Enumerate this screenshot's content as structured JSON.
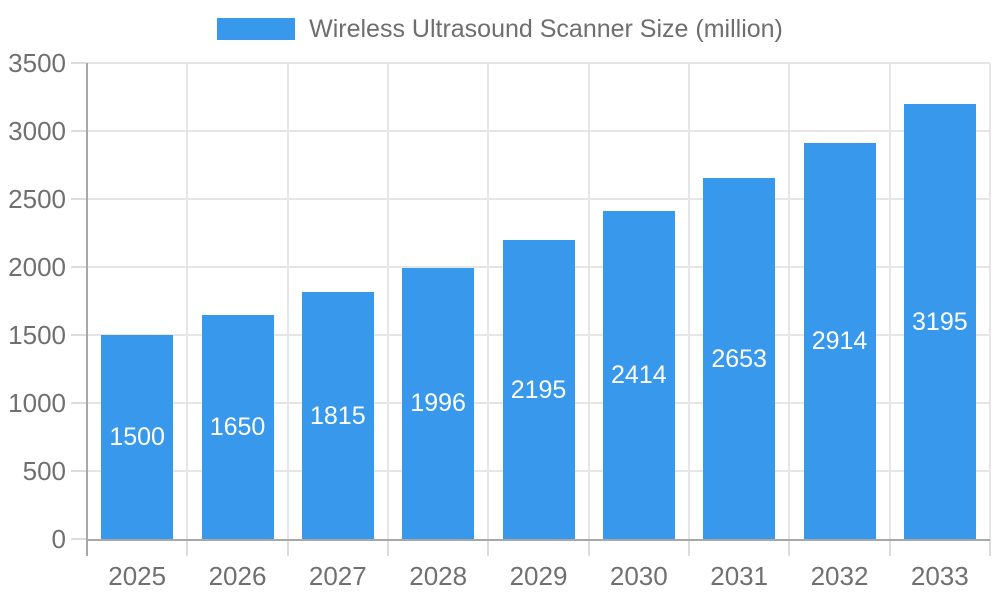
{
  "legend": {
    "label": "Wireless Ultrasound Scanner Size (million)",
    "swatch_color": "#3899ec"
  },
  "chart_data": {
    "type": "bar",
    "title": "Wireless Ultrasound Scanner Size (million)",
    "categories": [
      "2025",
      "2026",
      "2027",
      "2028",
      "2029",
      "2030",
      "2031",
      "2032",
      "2033"
    ],
    "values": [
      1500,
      1650,
      1815,
      1996,
      2195,
      2414,
      2653,
      2914,
      3195
    ],
    "xlabel": "",
    "ylabel": "",
    "ylim": [
      0,
      3500
    ],
    "yticks": [
      0,
      500,
      1000,
      1500,
      2000,
      2500,
      3000,
      3500
    ],
    "grid": true,
    "legend_position": "top",
    "bar_color": "#3899ec",
    "data_label_color": "#ffffff"
  },
  "colors": {
    "gridline": "#e6e6e6",
    "tick": "#dcdcdc",
    "axis": "#a8a8a8",
    "label_text": "#707070",
    "background": "#ffffff"
  }
}
